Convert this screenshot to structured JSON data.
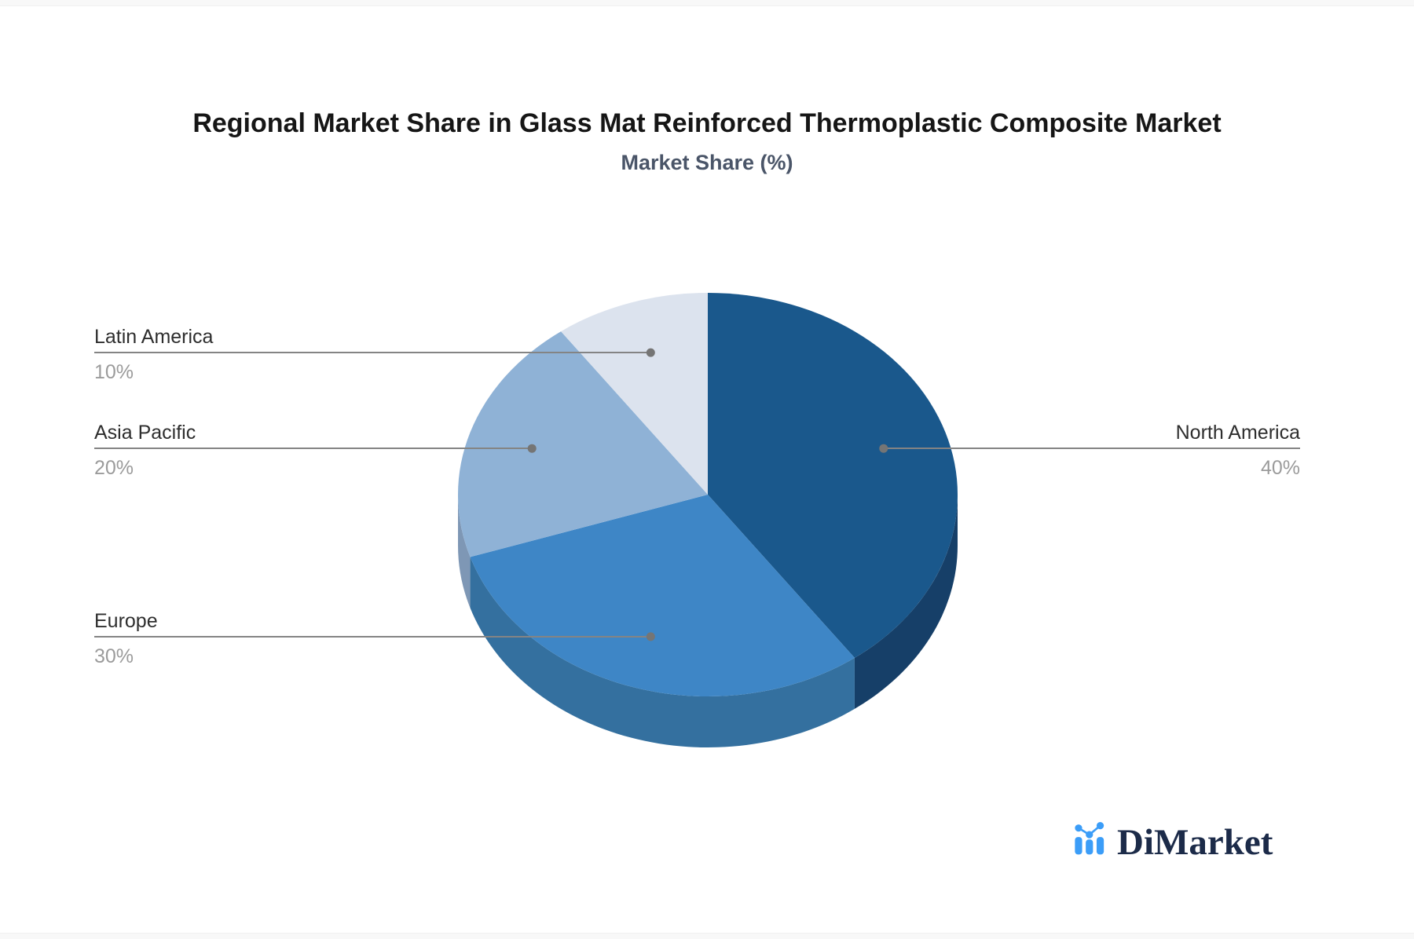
{
  "chart_data": {
    "type": "pie",
    "style": "3d",
    "title": "Regional Market Share in Glass Mat Reinforced Thermoplastic Composite Market",
    "subtitle": "Market Share (%)",
    "unit": "%",
    "start_angle_deg": 0,
    "direction": "clockwise",
    "slices": [
      {
        "label": "North America",
        "value": 40,
        "display_value": "40%",
        "color": "#1A588C",
        "depth_color": "#163F68",
        "label_side": "right"
      },
      {
        "label": "Europe",
        "value": 30,
        "display_value": "30%",
        "color": "#3E86C6",
        "depth_color": "#34709F",
        "label_side": "left"
      },
      {
        "label": "Asia Pacific",
        "value": 20,
        "display_value": "20%",
        "color": "#8FB2D6",
        "depth_color": "#7E97B5",
        "label_side": "left"
      },
      {
        "label": "Latin America",
        "value": 10,
        "display_value": "10%",
        "color": "#DCE3EE",
        "depth_color": "#C2CCDD",
        "label_side": "left"
      }
    ],
    "label_text_color": "#2E2E2E",
    "value_text_color": "#9B9B9B",
    "leader_line_color": "#848484",
    "leader_dot_color": "#757575",
    "legend": "none"
  },
  "branding": {
    "logo_text": "DiMarket",
    "logo_icon": "bar-line-chart-icon",
    "text_color": "#1C2B49",
    "icon_color": "#3B9DF8"
  }
}
